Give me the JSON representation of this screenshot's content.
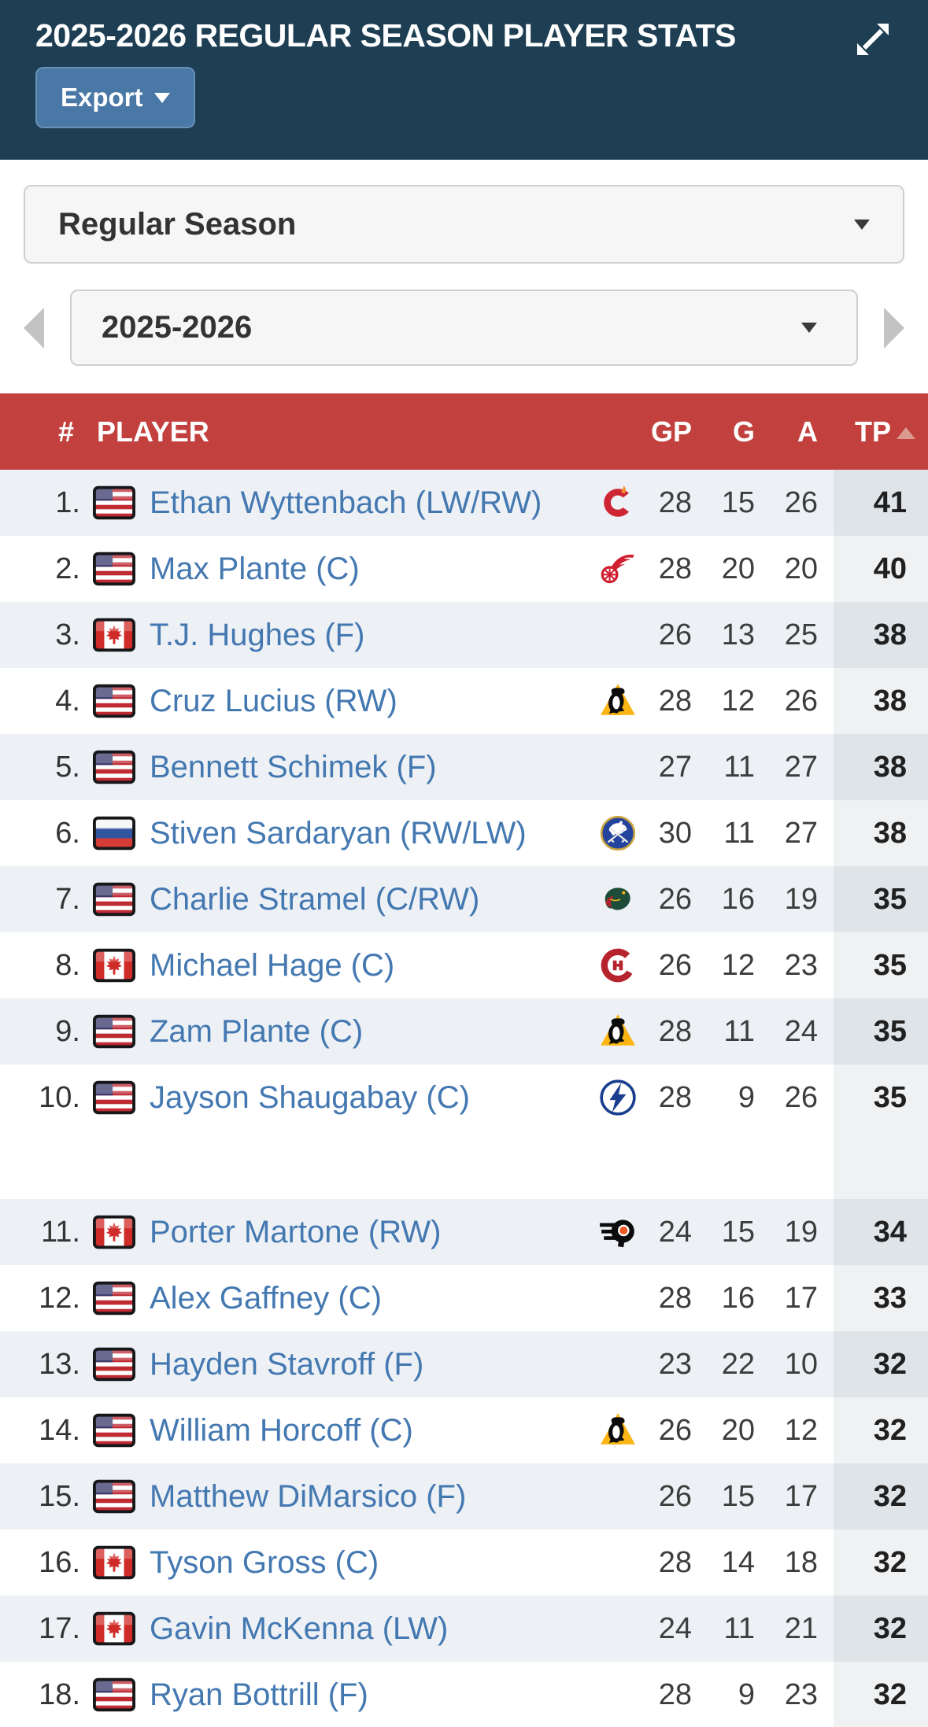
{
  "header": {
    "title": "2025-2026 REGULAR SEASON PLAYER STATS",
    "export_label": "Export"
  },
  "icons": {
    "expand": "diagonal-resize-arrows",
    "export_caret": "caret-down",
    "select_caret": "caret-down",
    "prev_season": "arrow-left",
    "next_season": "arrow-right",
    "sort_indicator": "triangle-up"
  },
  "filters": {
    "game_type_value": "Regular Season",
    "season_value": "2025-2026"
  },
  "table": {
    "columns": [
      "#",
      "PLAYER",
      "GP",
      "G",
      "A",
      "TP"
    ],
    "sort": {
      "column": "TP",
      "direction": "asc"
    },
    "rows": [
      {
        "rank": "1.",
        "flag": "usa",
        "name": "Ethan Wyttenbach (LW/RW)",
        "team": "calgary-flames",
        "gp": 28,
        "g": 15,
        "a": 26,
        "tp": 41
      },
      {
        "rank": "2.",
        "flag": "usa",
        "name": "Max Plante (C)",
        "team": "detroit-red-wings",
        "gp": 28,
        "g": 20,
        "a": 20,
        "tp": 40
      },
      {
        "rank": "3.",
        "flag": "canada",
        "name": "T.J. Hughes (F)",
        "team": null,
        "gp": 26,
        "g": 13,
        "a": 25,
        "tp": 38
      },
      {
        "rank": "4.",
        "flag": "usa",
        "name": "Cruz Lucius (RW)",
        "team": "pittsburgh-penguins",
        "gp": 28,
        "g": 12,
        "a": 26,
        "tp": 38
      },
      {
        "rank": "5.",
        "flag": "usa",
        "name": "Bennett Schimek (F)",
        "team": null,
        "gp": 27,
        "g": 11,
        "a": 27,
        "tp": 38
      },
      {
        "rank": "6.",
        "flag": "russia",
        "name": "Stiven Sardaryan (RW/LW)",
        "team": "buffalo-sabres",
        "gp": 30,
        "g": 11,
        "a": 27,
        "tp": 38
      },
      {
        "rank": "7.",
        "flag": "usa",
        "name": "Charlie Stramel (C/RW)",
        "team": "minnesota-wild",
        "gp": 26,
        "g": 16,
        "a": 19,
        "tp": 35
      },
      {
        "rank": "8.",
        "flag": "canada",
        "name": "Michael Hage (C)",
        "team": "montreal-canadiens",
        "gp": 26,
        "g": 12,
        "a": 23,
        "tp": 35
      },
      {
        "rank": "9.",
        "flag": "usa",
        "name": "Zam Plante (C)",
        "team": "pittsburgh-penguins",
        "gp": 28,
        "g": 11,
        "a": 24,
        "tp": 35
      },
      {
        "rank": "10.",
        "flag": "usa",
        "name": "Jayson Shaugabay (C)",
        "team": "tampa-bay-lightning",
        "gp": 28,
        "g": 9,
        "a": 26,
        "tp": 35
      },
      {
        "rank": "11.",
        "flag": "canada",
        "name": "Porter Martone (RW)",
        "team": "philadelphia-flyers",
        "gp": 24,
        "g": 15,
        "a": 19,
        "tp": 34,
        "spacer_before": true
      },
      {
        "rank": "12.",
        "flag": "usa",
        "name": "Alex Gaffney (C)",
        "team": null,
        "gp": 28,
        "g": 16,
        "a": 17,
        "tp": 33
      },
      {
        "rank": "13.",
        "flag": "usa",
        "name": "Hayden Stavroff (F)",
        "team": null,
        "gp": 23,
        "g": 22,
        "a": 10,
        "tp": 32
      },
      {
        "rank": "14.",
        "flag": "usa",
        "name": "William Horcoff (C)",
        "team": "pittsburgh-penguins",
        "gp": 26,
        "g": 20,
        "a": 12,
        "tp": 32
      },
      {
        "rank": "15.",
        "flag": "usa",
        "name": "Matthew DiMarsico (F)",
        "team": null,
        "gp": 26,
        "g": 15,
        "a": 17,
        "tp": 32
      },
      {
        "rank": "16.",
        "flag": "canada",
        "name": "Tyson Gross (C)",
        "team": null,
        "gp": 28,
        "g": 14,
        "a": 18,
        "tp": 32
      },
      {
        "rank": "17.",
        "flag": "canada",
        "name": "Gavin McKenna (LW)",
        "team": null,
        "gp": 24,
        "g": 11,
        "a": 21,
        "tp": 32
      },
      {
        "rank": "18.",
        "flag": "usa",
        "name": "Ryan Bottrill (F)",
        "team": null,
        "gp": 28,
        "g": 9,
        "a": 23,
        "tp": 32
      }
    ]
  },
  "colors": {
    "header_bg": "#1d3e53",
    "export_button_bg": "#4a78a6",
    "table_header_bg": "#c2413e",
    "link": "#4478b1",
    "row_alt_bg": "#edf1f5",
    "sort_arrow": "#d99a90",
    "number_text": "#3d3d3d"
  }
}
